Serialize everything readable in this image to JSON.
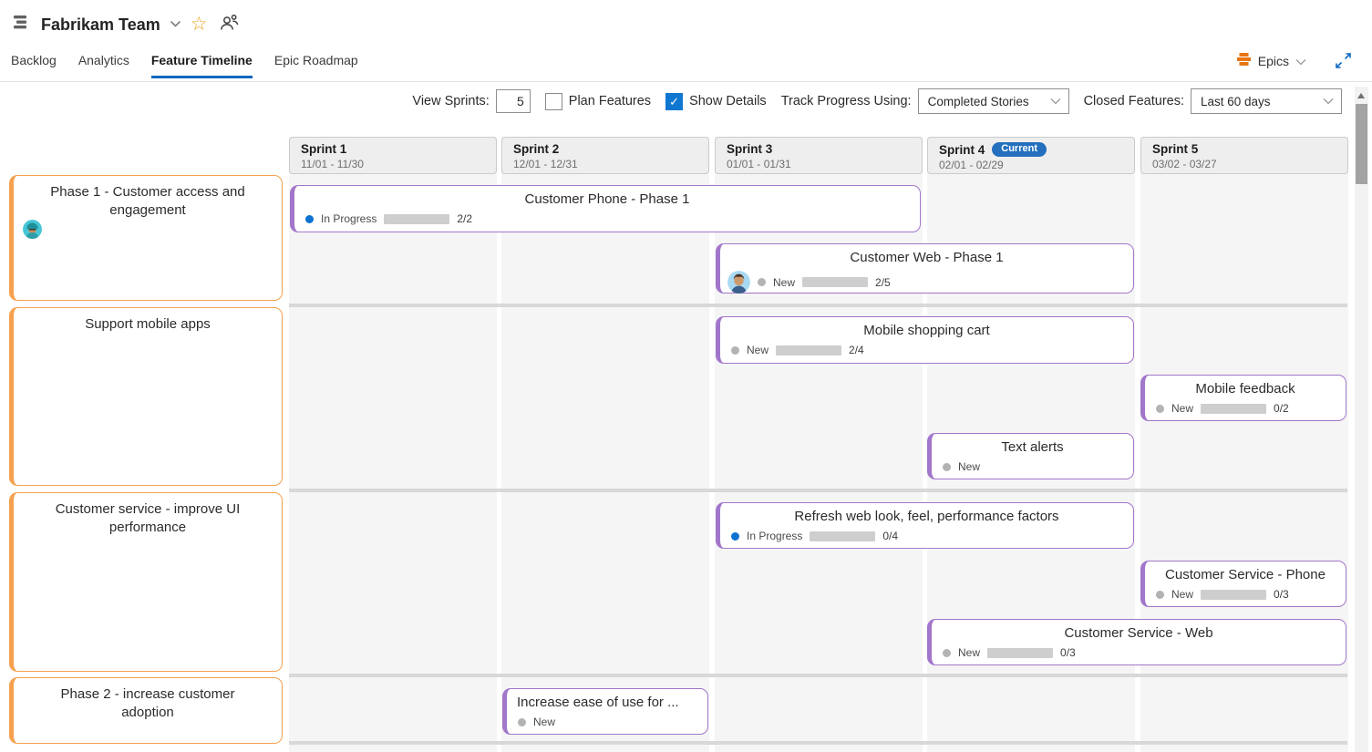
{
  "app": {
    "team_name": "Fabrikam Team",
    "tabs": {
      "backlog": "Backlog",
      "analytics": "Analytics",
      "feature_timeline": "Feature Timeline",
      "epic_roadmap": "Epic Roadmap"
    },
    "active_tab": "Feature Timeline",
    "backlog_level_label": "Epics"
  },
  "toolbar": {
    "view_sprints_label": "View Sprints:",
    "view_sprints_value": "5",
    "plan_features_label": "Plan Features",
    "plan_features_checked": false,
    "show_details_label": "Show Details",
    "show_details_checked": true,
    "show_details_checkmark": "✓",
    "track_progress_label": "Track Progress Using:",
    "track_progress_value": "Completed Stories",
    "closed_features_label": "Closed Features:",
    "closed_features_value": "Last 60 days"
  },
  "sprints": [
    {
      "name": "Sprint 1",
      "dates": "11/01 - 11/30",
      "badge": ""
    },
    {
      "name": "Sprint 2",
      "dates": "12/01 - 12/31",
      "badge": ""
    },
    {
      "name": "Sprint 3",
      "dates": "01/01 - 01/31",
      "badge": ""
    },
    {
      "name": "Sprint 4",
      "dates": "02/01 - 02/29",
      "badge": "Current"
    },
    {
      "name": "Sprint 5",
      "dates": "03/02 - 03/27",
      "badge": ""
    }
  ],
  "epics": [
    {
      "title": "Phase 1 - Customer access and engagement",
      "has_avatar": true
    },
    {
      "title": "Support mobile apps",
      "has_avatar": false
    },
    {
      "title": "Customer service - improve UI performance",
      "has_avatar": false
    },
    {
      "title": "Phase 2 - increase customer adoption",
      "has_avatar": false
    }
  ],
  "features": [
    {
      "title": "Customer Phone - Phase 1",
      "status": "In Progress",
      "progress": "2/2",
      "progress_pct": 100,
      "sprints": "Sprint 1 - Sprint 2"
    },
    {
      "title": "Customer Web - Phase 1",
      "status": "New",
      "progress": "2/5",
      "progress_pct": 40,
      "sprints": "Sprint 3 - Sprint 4",
      "has_avatar": true
    },
    {
      "title": "Mobile shopping cart",
      "status": "New",
      "progress": "2/4",
      "progress_pct": 50,
      "sprints": "Sprint 3 - Sprint 4"
    },
    {
      "title": "Mobile feedback",
      "status": "New",
      "progress": "0/2",
      "progress_pct": 0,
      "sprints": "Sprint 5"
    },
    {
      "title": "Text alerts",
      "status": "New",
      "progress": "",
      "sprints": "Sprint 4"
    },
    {
      "title": "Refresh web look, feel, performance factors",
      "status": "In Progress",
      "progress": "0/4",
      "progress_pct": 0,
      "sprints": "Sprint 3 - Sprint 4"
    },
    {
      "title": "Customer Service - Phone",
      "status": "New",
      "progress": "0/3",
      "progress_pct": 0,
      "sprints": "Sprint 5"
    },
    {
      "title": "Customer Service - Web",
      "status": "New",
      "progress": "0/3",
      "progress_pct": 0,
      "sprints": "Sprint 4 - Sprint 5"
    },
    {
      "title": "Increase ease of use for ...",
      "status": "New",
      "progress": "",
      "sprints": "Sprint 2"
    }
  ],
  "colors": {
    "feature_border": "#a276cb",
    "epic_border": "#f5a14f",
    "progress_fill": "#3ab63a",
    "progress_track": "#cecece",
    "status_new_dot": "#b3b3b3",
    "status_inprogress_dot": "#0b72d0",
    "current_badge": "#2470be",
    "tab_underline": "#1068bf",
    "checkbox_checked": "#0f77d0",
    "epics_icon": "#e87612"
  }
}
